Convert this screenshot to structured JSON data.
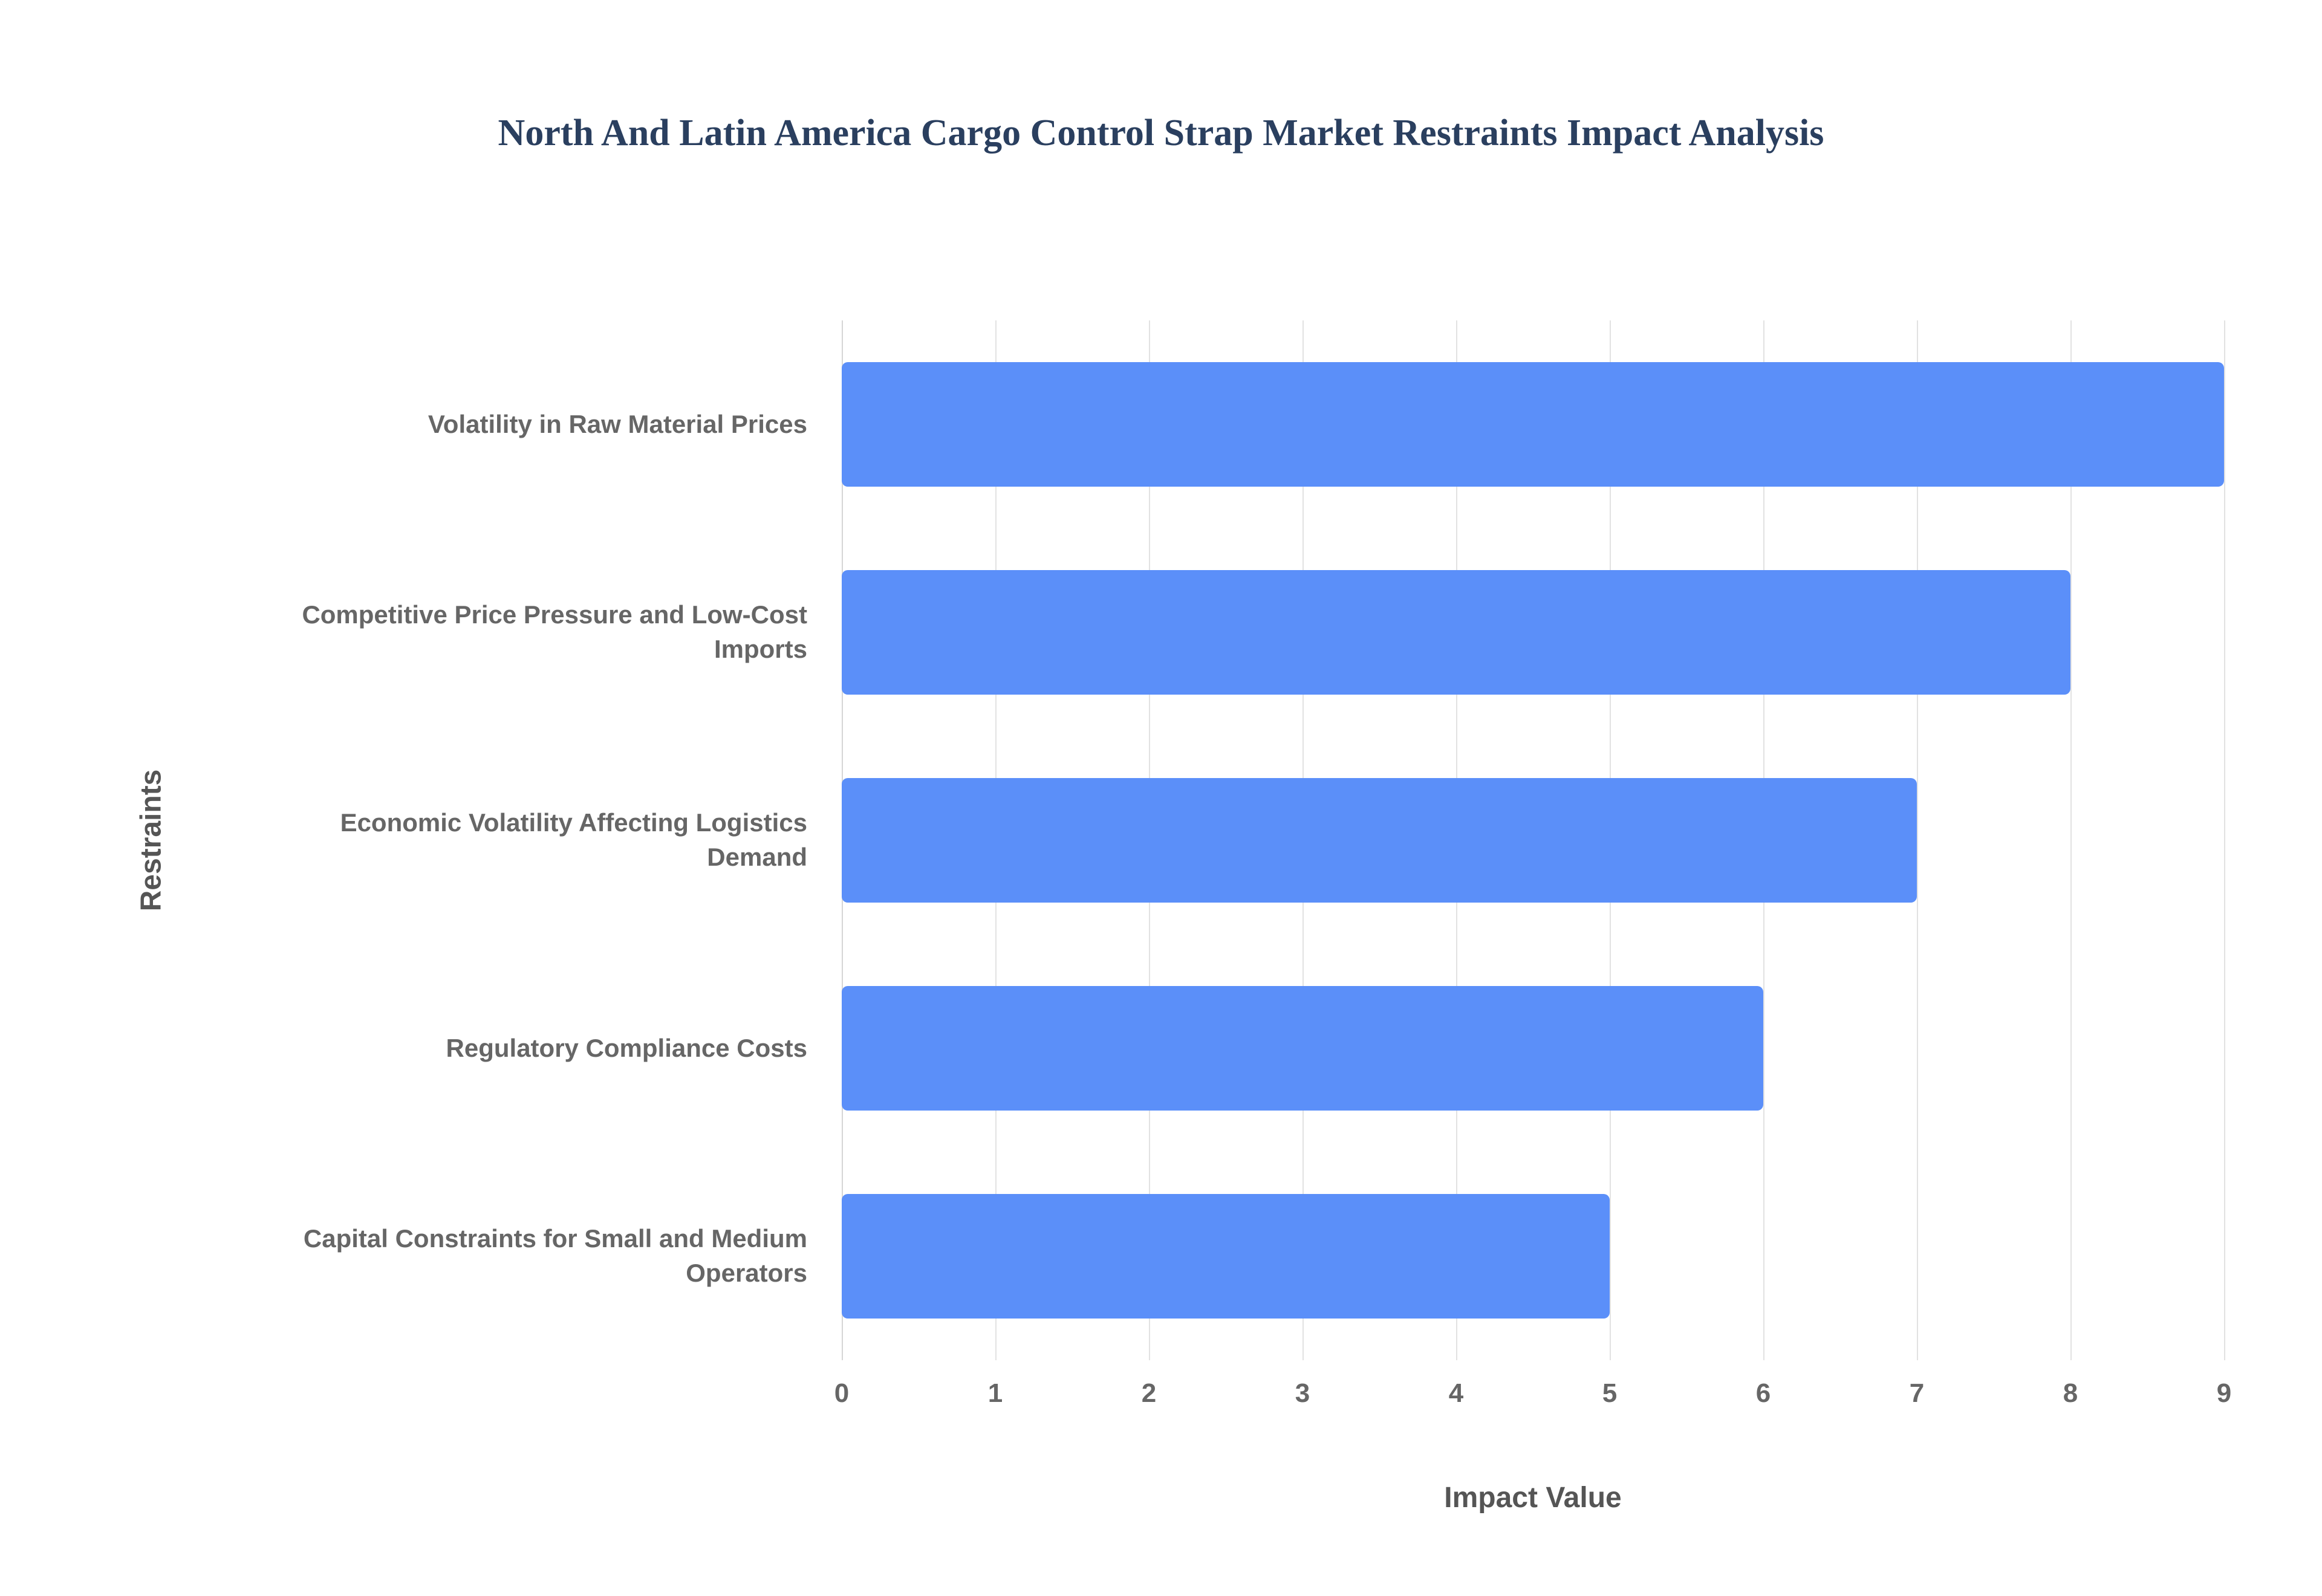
{
  "title": "North And Latin America Cargo Control Strap Market Restraints Impact Analysis",
  "chart_data": {
    "type": "bar",
    "orientation": "horizontal",
    "title": "North And Latin America Cargo Control Strap Market Restraints Impact Analysis",
    "categories": [
      "Volatility in Raw Material Prices",
      "Competitive Price Pressure and Low-Cost Imports",
      "Economic Volatility Affecting Logistics Demand",
      "Regulatory Compliance Costs",
      "Capital Constraints for Small and Medium Operators"
    ],
    "values": [
      9,
      8,
      7,
      6,
      5
    ],
    "xlabel": "Impact Value",
    "ylabel": "Restraints",
    "xlim": [
      0,
      9
    ],
    "x_ticks": [
      0,
      1,
      2,
      3,
      4,
      5,
      6,
      7,
      8,
      9
    ],
    "grid": "vertical",
    "legend": "none",
    "bar_color": "#5b8ff9",
    "background_color": "#ffffff",
    "title_color": "#2a3f5f",
    "label_color": "#666666"
  }
}
